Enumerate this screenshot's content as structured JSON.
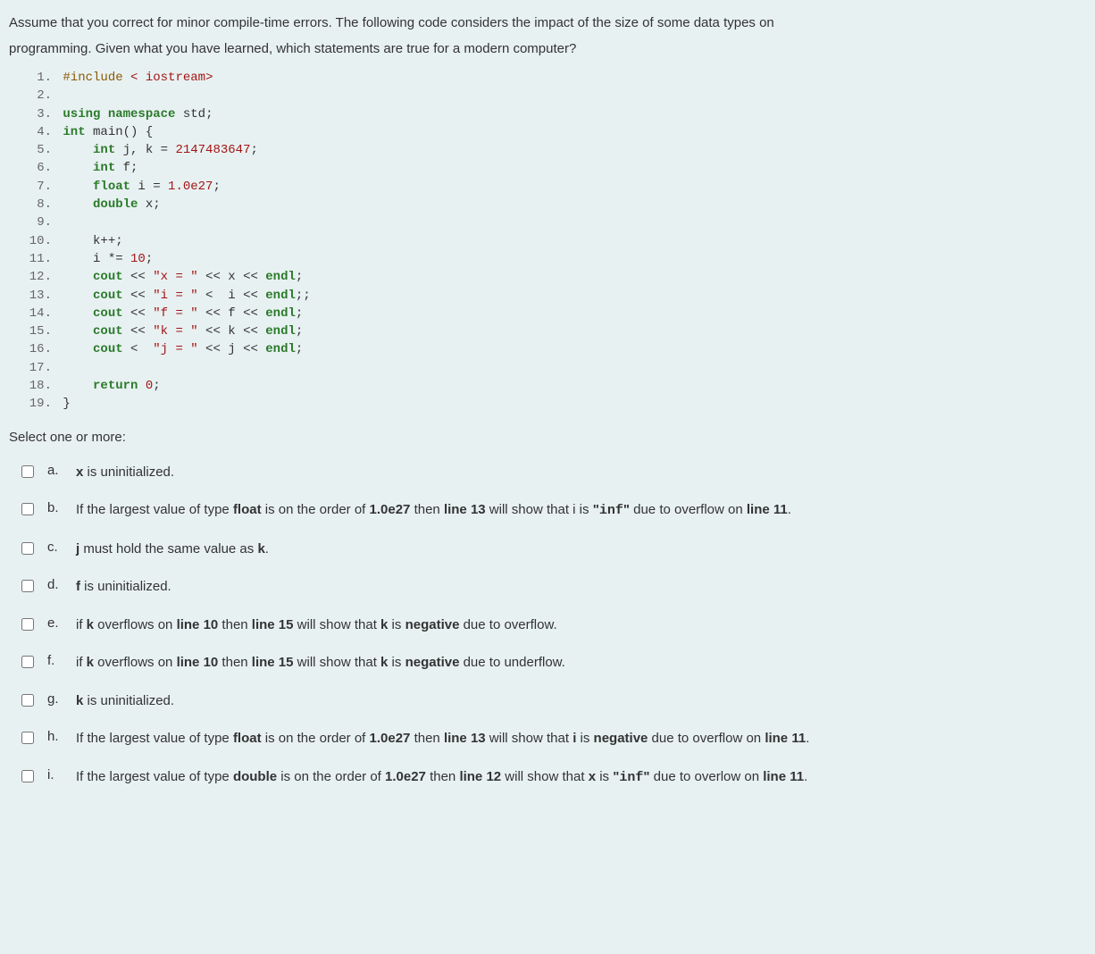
{
  "question": {
    "line1": "Assume that you correct for minor compile-time errors. The following code considers the impact of the size of some data types on",
    "line2": "programming. Given what you have learned, which statements are true for a modern computer?"
  },
  "code": {
    "lines": [
      {
        "n": "1.",
        "tokens": [
          {
            "t": "#include",
            "c": "brn"
          },
          {
            "t": " ",
            "c": ""
          },
          {
            "t": "<",
            "c": "inc"
          },
          {
            "t": " iostream",
            "c": "inc"
          },
          {
            "t": ">",
            "c": "inc"
          }
        ]
      },
      {
        "n": "2.",
        "tokens": []
      },
      {
        "n": "3.",
        "tokens": [
          {
            "t": "using",
            "c": "kw"
          },
          {
            "t": " ",
            "c": ""
          },
          {
            "t": "namespace",
            "c": "kw"
          },
          {
            "t": " ",
            "c": ""
          },
          {
            "t": "std",
            "c": "id"
          },
          {
            "t": ";",
            "c": "op"
          }
        ]
      },
      {
        "n": "4.",
        "tokens": [
          {
            "t": "int",
            "c": "ty"
          },
          {
            "t": " ",
            "c": ""
          },
          {
            "t": "main",
            "c": "fn"
          },
          {
            "t": "() {",
            "c": "op"
          }
        ]
      },
      {
        "n": "5.",
        "tokens": [
          {
            "t": "    ",
            "c": ""
          },
          {
            "t": "int",
            "c": "ty"
          },
          {
            "t": " j, k = ",
            "c": "id"
          },
          {
            "t": "2147483647",
            "c": "num"
          },
          {
            "t": ";",
            "c": "op"
          }
        ]
      },
      {
        "n": "6.",
        "tokens": [
          {
            "t": "    ",
            "c": ""
          },
          {
            "t": "int",
            "c": "ty"
          },
          {
            "t": " f;",
            "c": "id"
          }
        ]
      },
      {
        "n": "7.",
        "tokens": [
          {
            "t": "    ",
            "c": ""
          },
          {
            "t": "float",
            "c": "ty"
          },
          {
            "t": " i = ",
            "c": "id"
          },
          {
            "t": "1.0e27",
            "c": "num"
          },
          {
            "t": ";",
            "c": "op"
          }
        ]
      },
      {
        "n": "8.",
        "tokens": [
          {
            "t": "    ",
            "c": ""
          },
          {
            "t": "double",
            "c": "ty"
          },
          {
            "t": " x;",
            "c": "id"
          }
        ]
      },
      {
        "n": "9.",
        "tokens": []
      },
      {
        "n": "10.",
        "tokens": [
          {
            "t": "    k++;",
            "c": "id"
          }
        ]
      },
      {
        "n": "11.",
        "tokens": [
          {
            "t": "    i *= ",
            "c": "id"
          },
          {
            "t": "10",
            "c": "num"
          },
          {
            "t": ";",
            "c": "op"
          }
        ]
      },
      {
        "n": "12.",
        "tokens": [
          {
            "t": "    ",
            "c": ""
          },
          {
            "t": "cout",
            "c": "kw"
          },
          {
            "t": " << ",
            "c": "op"
          },
          {
            "t": "\"x = \"",
            "c": "str"
          },
          {
            "t": " << x << ",
            "c": "op"
          },
          {
            "t": "endl",
            "c": "kw"
          },
          {
            "t": ";",
            "c": "op"
          }
        ]
      },
      {
        "n": "13.",
        "tokens": [
          {
            "t": "    ",
            "c": ""
          },
          {
            "t": "cout",
            "c": "kw"
          },
          {
            "t": " << ",
            "c": "op"
          },
          {
            "t": "\"i = \"",
            "c": "str"
          },
          {
            "t": " <  i << ",
            "c": "op"
          },
          {
            "t": "endl",
            "c": "kw"
          },
          {
            "t": ";;",
            "c": "op"
          }
        ]
      },
      {
        "n": "14.",
        "tokens": [
          {
            "t": "    ",
            "c": ""
          },
          {
            "t": "cout",
            "c": "kw"
          },
          {
            "t": " << ",
            "c": "op"
          },
          {
            "t": "\"f = \"",
            "c": "str"
          },
          {
            "t": " << f << ",
            "c": "op"
          },
          {
            "t": "endl",
            "c": "kw"
          },
          {
            "t": ";",
            "c": "op"
          }
        ]
      },
      {
        "n": "15.",
        "tokens": [
          {
            "t": "    ",
            "c": ""
          },
          {
            "t": "cout",
            "c": "kw"
          },
          {
            "t": " << ",
            "c": "op"
          },
          {
            "t": "\"k = \"",
            "c": "str"
          },
          {
            "t": " << k << ",
            "c": "op"
          },
          {
            "t": "endl",
            "c": "kw"
          },
          {
            "t": ";",
            "c": "op"
          }
        ]
      },
      {
        "n": "16.",
        "tokens": [
          {
            "t": "    ",
            "c": ""
          },
          {
            "t": "cout",
            "c": "kw"
          },
          {
            "t": " <  ",
            "c": "op"
          },
          {
            "t": "\"j = \"",
            "c": "str"
          },
          {
            "t": " << j << ",
            "c": "op"
          },
          {
            "t": "endl",
            "c": "kw"
          },
          {
            "t": ";",
            "c": "op"
          }
        ]
      },
      {
        "n": "17.",
        "tokens": []
      },
      {
        "n": "18.",
        "tokens": [
          {
            "t": "    ",
            "c": ""
          },
          {
            "t": "return",
            "c": "kw"
          },
          {
            "t": " ",
            "c": ""
          },
          {
            "t": "0",
            "c": "num"
          },
          {
            "t": ";",
            "c": "op"
          }
        ]
      },
      {
        "n": "19.",
        "tokens": [
          {
            "t": "}",
            "c": "op"
          }
        ]
      }
    ]
  },
  "select_prompt": "Select one or more:",
  "options": [
    {
      "letter": "a.",
      "segments": [
        {
          "t": "x",
          "b": true
        },
        {
          "t": " is uninitialized."
        }
      ]
    },
    {
      "letter": "b.",
      "segments": [
        {
          "t": "If the largest value of type "
        },
        {
          "t": "float",
          "b": true
        },
        {
          "t": " is on the order of "
        },
        {
          "t": "1.0e27",
          "b": true
        },
        {
          "t": " then "
        },
        {
          "t": "line 13",
          "b": true
        },
        {
          "t": " will show that i is "
        },
        {
          "t": "\"",
          "b": true
        },
        {
          "t": "inf",
          "b": true,
          "mono": true
        },
        {
          "t": "\"",
          "b": true
        },
        {
          "t": " due to overflow on "
        },
        {
          "t": "line 11",
          "b": true
        },
        {
          "t": "."
        }
      ]
    },
    {
      "letter": "c.",
      "segments": [
        {
          "t": "j",
          "b": true
        },
        {
          "t": " must hold the same value as "
        },
        {
          "t": "k",
          "b": true
        },
        {
          "t": "."
        }
      ]
    },
    {
      "letter": "d.",
      "segments": [
        {
          "t": "f",
          "b": true
        },
        {
          "t": " is uninitialized."
        }
      ]
    },
    {
      "letter": "e.",
      "segments": [
        {
          "t": "if "
        },
        {
          "t": "k",
          "b": true
        },
        {
          "t": " overflows on "
        },
        {
          "t": "line 10",
          "b": true
        },
        {
          "t": " then "
        },
        {
          "t": "line 15",
          "b": true
        },
        {
          "t": " will show that "
        },
        {
          "t": "k",
          "b": true
        },
        {
          "t": " is "
        },
        {
          "t": "negative",
          "b": true
        },
        {
          "t": " due to overflow."
        }
      ]
    },
    {
      "letter": "f.",
      "segments": [
        {
          "t": "if "
        },
        {
          "t": "k",
          "b": true
        },
        {
          "t": " overflows on "
        },
        {
          "t": "line 10",
          "b": true
        },
        {
          "t": " then "
        },
        {
          "t": "line 15",
          "b": true
        },
        {
          "t": " will show that "
        },
        {
          "t": "k",
          "b": true
        },
        {
          "t": " is "
        },
        {
          "t": "negative",
          "b": true
        },
        {
          "t": " due to underflow."
        }
      ]
    },
    {
      "letter": "g.",
      "segments": [
        {
          "t": "k",
          "b": true
        },
        {
          "t": " is uninitialized."
        }
      ]
    },
    {
      "letter": "h.",
      "segments": [
        {
          "t": "If the largest value of type "
        },
        {
          "t": "float",
          "b": true
        },
        {
          "t": " is on the order of "
        },
        {
          "t": "1.0e27",
          "b": true
        },
        {
          "t": " then "
        },
        {
          "t": "line 13",
          "b": true
        },
        {
          "t": " will show that "
        },
        {
          "t": "i",
          "b": true
        },
        {
          "t": " is "
        },
        {
          "t": "negative",
          "b": true
        },
        {
          "t": " due to overflow on "
        },
        {
          "t": "line 11",
          "b": true
        },
        {
          "t": "."
        }
      ]
    },
    {
      "letter": "i.",
      "segments": [
        {
          "t": "If the largest value of type "
        },
        {
          "t": "double",
          "b": true
        },
        {
          "t": " is on the order of "
        },
        {
          "t": "1.0e27",
          "b": true
        },
        {
          "t": " then "
        },
        {
          "t": "line 12",
          "b": true
        },
        {
          "t": " will show that "
        },
        {
          "t": "x",
          "b": true
        },
        {
          "t": " is "
        },
        {
          "t": "\"",
          "b": true
        },
        {
          "t": "inf",
          "b": true,
          "mono": true
        },
        {
          "t": "\"",
          "b": true
        },
        {
          "t": " due to overlow on "
        },
        {
          "t": "line 11",
          "b": true
        },
        {
          "t": "."
        }
      ]
    }
  ]
}
